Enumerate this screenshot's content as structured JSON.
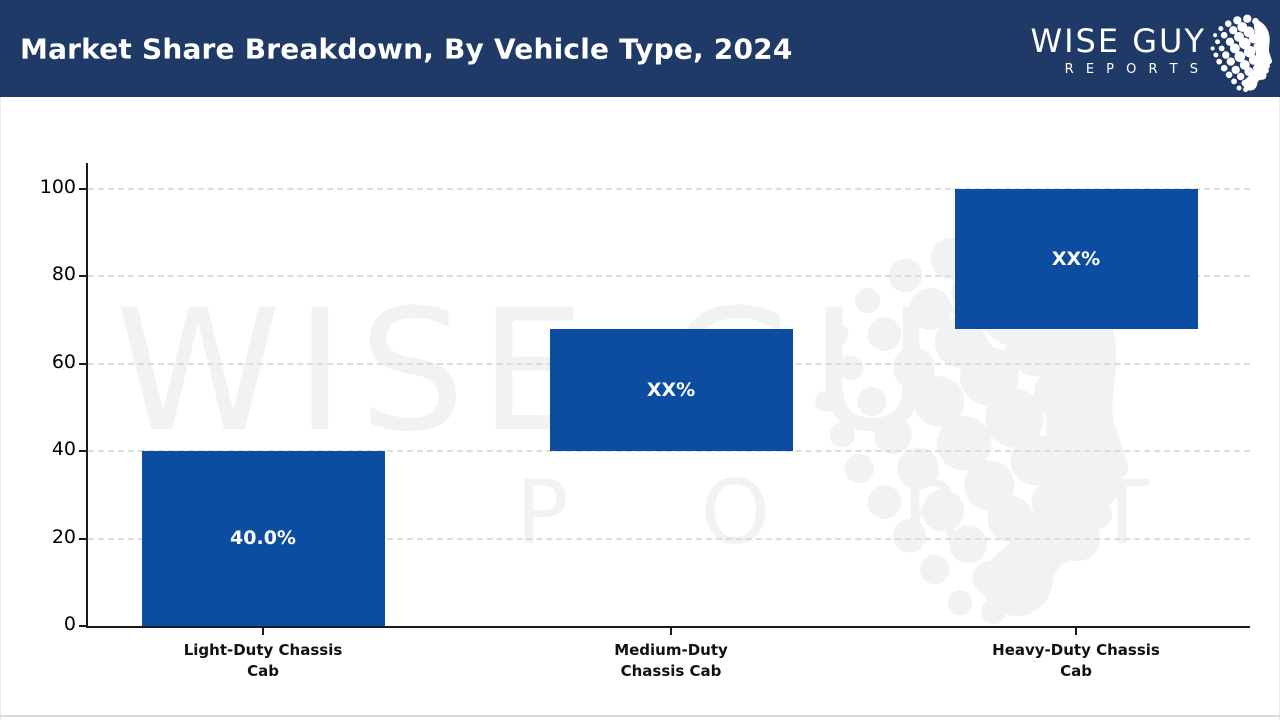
{
  "header": {
    "title": "Market Share Breakdown, By Vehicle Type, 2024",
    "logo": {
      "wordmark": "WISE GUY",
      "subtext": "R E P O R T S"
    }
  },
  "watermark": {
    "line1": "WISE GUY",
    "line2": "R E P O R T S"
  },
  "colors": {
    "header_bg": "#1f3a66",
    "bar": "#0d4da1",
    "grid": "#dcdcdc",
    "axis": "#1a1a1a",
    "watermark": "#f2f2f2"
  },
  "chart_data": {
    "type": "bar",
    "subtype": "waterfall",
    "title": "Market Share Breakdown, By Vehicle Type, 2024",
    "categories": [
      [
        "Light-Duty Chassis",
        "Cab"
      ],
      [
        "Medium-Duty",
        "Chassis Cab"
      ],
      [
        "Heavy-Duty Chassis",
        "Cab"
      ]
    ],
    "segments": [
      {
        "start": 0,
        "end": 40,
        "label": "40.0%"
      },
      {
        "start": 40,
        "end": 68,
        "label": "XX%"
      },
      {
        "start": 68,
        "end": 100,
        "label": "XX%"
      }
    ],
    "xlabel": "",
    "ylabel": "",
    "ylim": [
      0,
      100
    ],
    "yticks": [
      0,
      20,
      40,
      60,
      80,
      100
    ],
    "grid": "horizontal-dashed",
    "legend": "none",
    "bar_color_hex": "#0d4da1",
    "value_label_color": "#ffffff"
  }
}
